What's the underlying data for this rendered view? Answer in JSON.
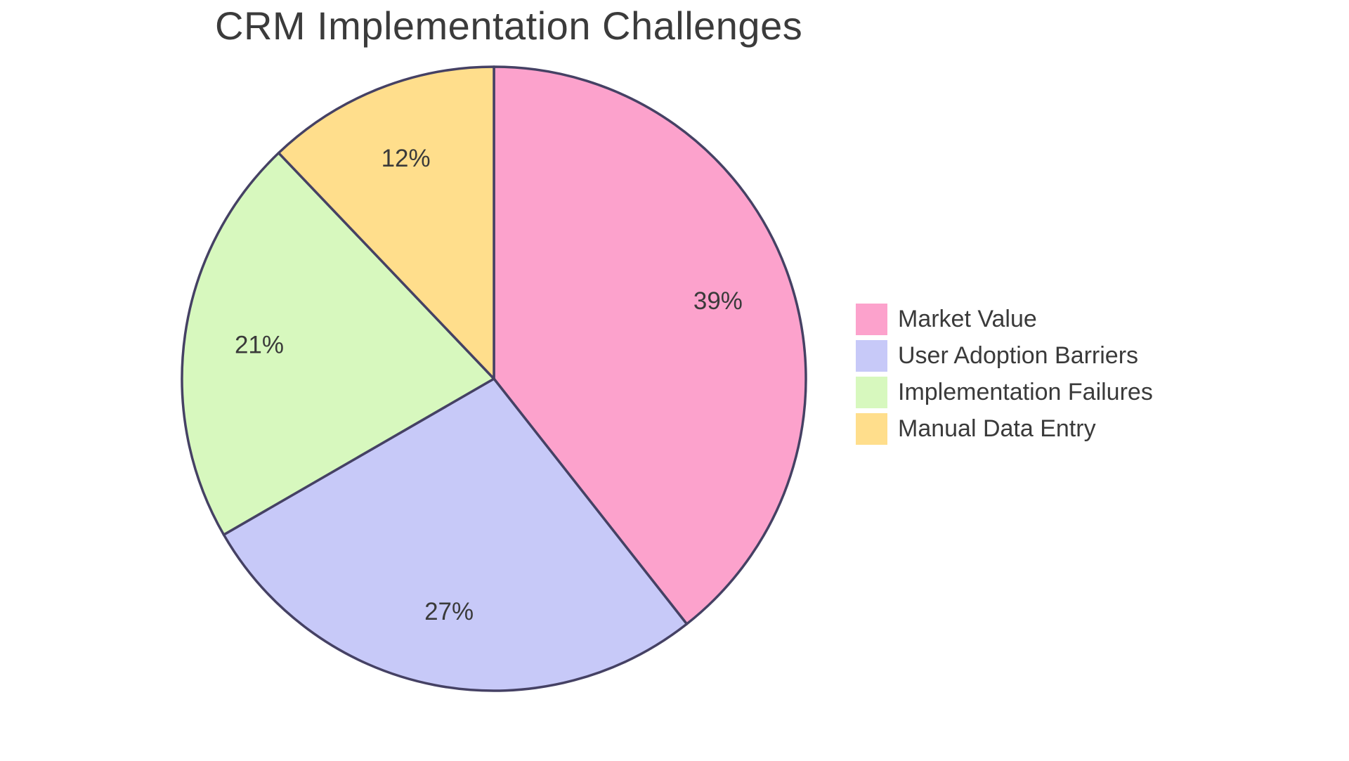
{
  "chart_data": {
    "type": "pie",
    "title": "CRM Implementation Challenges",
    "slices": [
      {
        "label": "Market Value",
        "value": 39,
        "pct_label": "39%",
        "color": "#FCA2CC"
      },
      {
        "label": "User Adoption Barriers",
        "value": 27,
        "pct_label": "27%",
        "color": "#C7C9F8"
      },
      {
        "label": "Implementation Failures",
        "value": 21,
        "pct_label": "21%",
        "color": "#D7F8BE"
      },
      {
        "label": "Manual Data Entry",
        "value": 12,
        "pct_label": "12%",
        "color": "#FFDE8C"
      }
    ],
    "start_angle": "12-oclock",
    "direction": "clockwise",
    "legend_position": "right",
    "stroke_color": "#454164",
    "label_color": "#3a3a3a",
    "title_color": "#3b3b3b",
    "background": "#ffffff"
  }
}
